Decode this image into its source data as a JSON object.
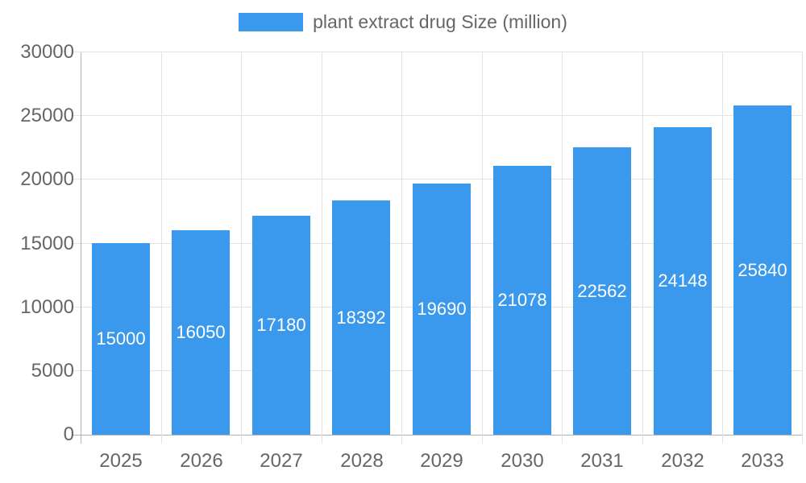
{
  "chart_data": {
    "type": "bar",
    "title": "plant extract drug Size (million)",
    "legend_entries": [
      "plant extract drug Size (million)"
    ],
    "legend_position": "top",
    "categories": [
      "2025",
      "2026",
      "2027",
      "2028",
      "2029",
      "2030",
      "2031",
      "2032",
      "2033"
    ],
    "values": [
      15000,
      16050,
      17180,
      18392,
      19690,
      21078,
      22562,
      24148,
      25840
    ],
    "data_labels": [
      "15000",
      "16050",
      "17180",
      "18392",
      "19690",
      "21078",
      "22562",
      "24148",
      "25840"
    ],
    "xlabel": "",
    "ylabel": "",
    "ylim": [
      0,
      30000
    ],
    "ytick_step": 5000,
    "yticks": [
      "0",
      "5000",
      "10000",
      "15000",
      "20000",
      "25000",
      "30000"
    ],
    "grid": true,
    "colors": {
      "bar": "#3a99ec",
      "grid_line": "#e3e3e3",
      "axis_line": "#b0b0b0",
      "tick_text": "#666666",
      "legend_text": "#666666",
      "data_label_text": "#ffffff",
      "background": "#ffffff"
    }
  }
}
